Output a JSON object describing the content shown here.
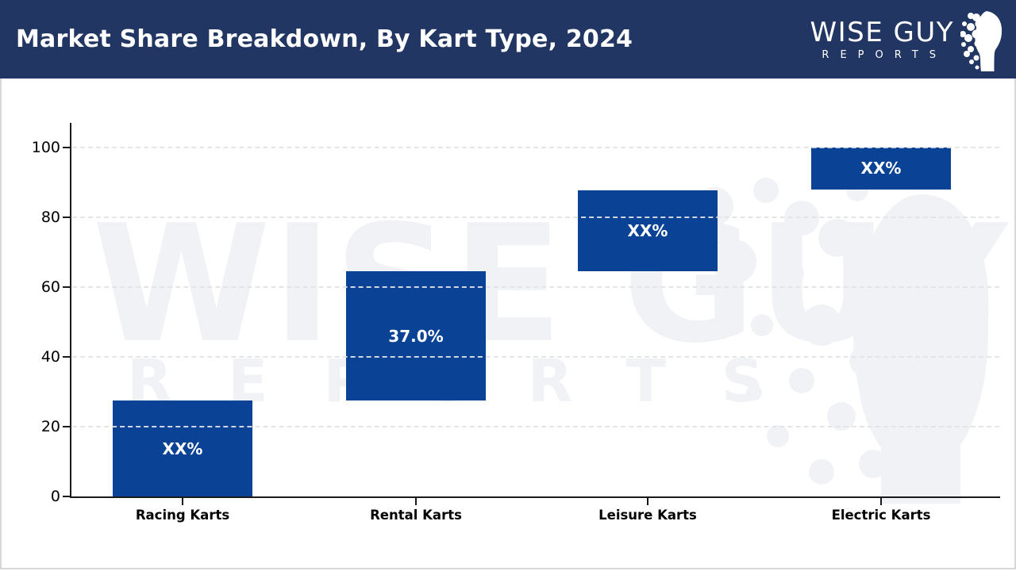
{
  "header": {
    "title": "Market Share Breakdown, By Kart Type, 2024",
    "logo": {
      "line1": "WISE GUY",
      "line2": "REPORTS"
    }
  },
  "watermark": {
    "line1": "WISE GUY",
    "line2": "REPORTS"
  },
  "chart_data": {
    "type": "bar",
    "subtype": "floating-waterfall",
    "title": "Market Share Breakdown, By Kart Type, 2024",
    "categories": [
      "Racing Karts",
      "Rental Karts",
      "Leisure Karts",
      "Electric Karts"
    ],
    "segments": [
      {
        "category": "Racing Karts",
        "start": 0,
        "end": 27.5,
        "label": "XX%"
      },
      {
        "category": "Rental Karts",
        "start": 27.5,
        "end": 64.5,
        "label": "37.0%"
      },
      {
        "category": "Leisure Karts",
        "start": 64.5,
        "end": 87.7,
        "label": "XX%"
      },
      {
        "category": "Electric Karts",
        "start": 88,
        "end": 100,
        "label": "XX%"
      }
    ],
    "xlabel": "",
    "ylabel": "",
    "ylim": [
      0,
      107
    ],
    "yticks": [
      0,
      20,
      40,
      60,
      80,
      100
    ],
    "grid": "horizontal-dashed",
    "legend": "none",
    "bar_color": "#0a4296",
    "bar_label_color": "#ffffff"
  },
  "colors": {
    "header_bg": "#213662",
    "bar": "#0a4296",
    "axis": "#1a1a1a",
    "gridline": "#e3e5e8",
    "watermark": "#f1f2f5"
  }
}
